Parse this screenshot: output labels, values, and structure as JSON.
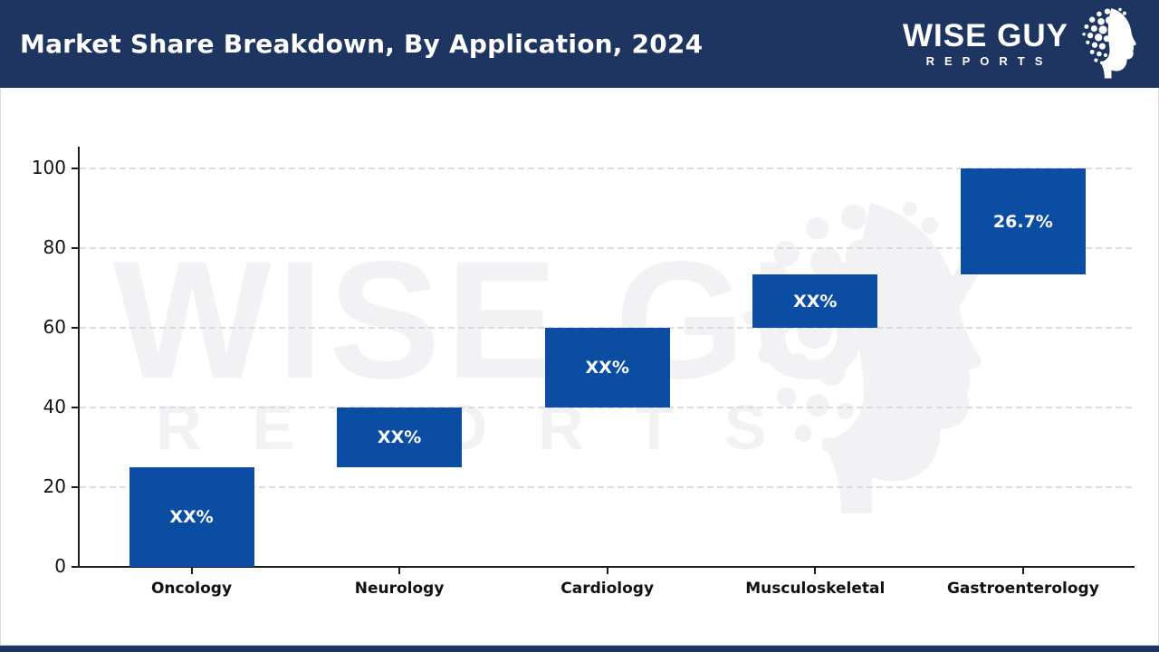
{
  "header": {
    "title": "Market Share Breakdown, By Application, 2024",
    "brand": {
      "line1": "WISE GUY",
      "line2": "REPORTS"
    },
    "bg_color": "#1e3461",
    "text_color": "#ffffff"
  },
  "watermark": {
    "line1": "WISE GUY",
    "line2": "REPORTS",
    "color": "#f2f2f4"
  },
  "footer": {
    "bg_color": "#1e3461"
  },
  "chart_data": {
    "type": "bar",
    "subtype": "waterfall",
    "title": "Market Share Breakdown, By Application, 2024",
    "categories": [
      "Oncology",
      "Neurology",
      "Cardiology",
      "Musculoskeletal",
      "Gastroenterology"
    ],
    "series": [
      {
        "name": "Market share (%)",
        "segments": [
          {
            "category": "Oncology",
            "start": 0,
            "end": 25,
            "value_label": "XX%"
          },
          {
            "category": "Neurology",
            "start": 25,
            "end": 40,
            "value_label": "XX%"
          },
          {
            "category": "Cardiology",
            "start": 40,
            "end": 60,
            "value_label": "XX%"
          },
          {
            "category": "Musculoskeletal",
            "start": 60,
            "end": 73.3,
            "value_label": "XX%"
          },
          {
            "category": "Gastroenterology",
            "start": 73.3,
            "end": 100,
            "value_label": "26.7%"
          }
        ]
      }
    ],
    "xlabel": "",
    "ylabel": "",
    "ylim": [
      0,
      100
    ],
    "yticks": [
      0,
      20,
      40,
      60,
      80,
      100
    ],
    "grid": "horizontal-dashed",
    "legend": "none",
    "bar_color": "#0b4da2",
    "bar_label_color": "#ffffff",
    "axis_color": "#1c1c1c",
    "gridline_color": "#dcdcdc"
  }
}
